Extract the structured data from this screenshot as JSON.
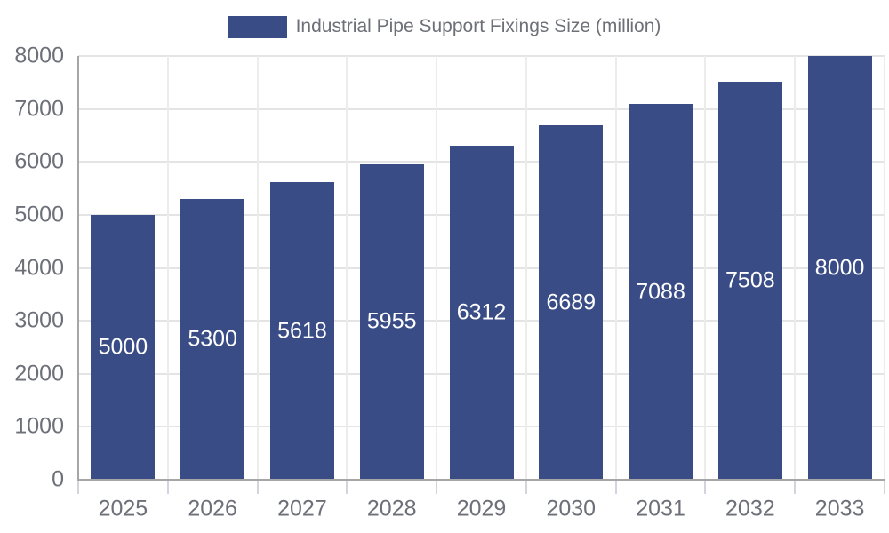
{
  "legend": {
    "label": "Industrial Pipe Support Fixings Size (million)"
  },
  "colors": {
    "bar": "#394C85",
    "bar_label_text": "#FFFFFF",
    "axis_text": "#6E7079",
    "legend_text": "#6E7079",
    "axis_line": "#A6A6A6",
    "h_grid_line": "#E4E4E4",
    "v_grid_line": "#ECECEC",
    "tick_line": "#D4D4DC"
  },
  "chart_data": {
    "type": "bar",
    "title": "",
    "categories": [
      "2025",
      "2026",
      "2027",
      "2028",
      "2029",
      "2030",
      "2031",
      "2032",
      "2033"
    ],
    "series": [
      {
        "name": "Industrial Pipe Support Fixings Size (million)",
        "values": [
          5000,
          5300,
          5618,
          5955,
          6312,
          6689,
          7088,
          7508,
          8000
        ]
      }
    ],
    "bar_value_labels": [
      "5000",
      "5300",
      "5618",
      "5955",
      "6312",
      "6689",
      "7088",
      "7508",
      "8000"
    ],
    "ylim": [
      0,
      8000
    ],
    "ytick_step": 1000,
    "ytick_labels": [
      "0",
      "1000",
      "2000",
      "3000",
      "4000",
      "5000",
      "6000",
      "7000",
      "8000"
    ],
    "grid": "both",
    "legend_position": "top-center",
    "value_label_position": "inside-middle"
  }
}
